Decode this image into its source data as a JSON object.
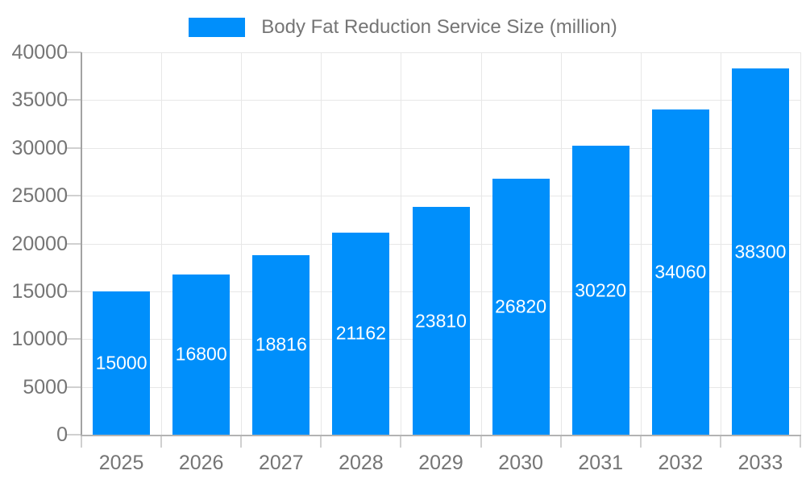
{
  "legend": {
    "label": "Body Fat Reduction Service Size (million)",
    "swatch_color": "#008FFB"
  },
  "chart_data": {
    "type": "bar",
    "title": "Body Fat Reduction Service Size (million)",
    "categories": [
      "2025",
      "2026",
      "2027",
      "2028",
      "2029",
      "2030",
      "2031",
      "2032",
      "2033"
    ],
    "values": [
      15000,
      16800,
      18816,
      21162,
      23810,
      26820,
      30220,
      34060,
      38300
    ],
    "xlabel": "",
    "ylabel": "",
    "ylim": [
      0,
      40000
    ],
    "ytick_step": 5000,
    "grid": true,
    "legend_position": "top",
    "show_value_labels": true,
    "bar_color": "#008FFB",
    "value_label_color": "#ffffff",
    "axis_text_color": "#757575",
    "grid_color": "#e7e7e7",
    "tick_color": "#d0d0d0",
    "y_axis_line_color": "#a3a3a3",
    "x_axis_line_color": "#b3b3b3"
  }
}
